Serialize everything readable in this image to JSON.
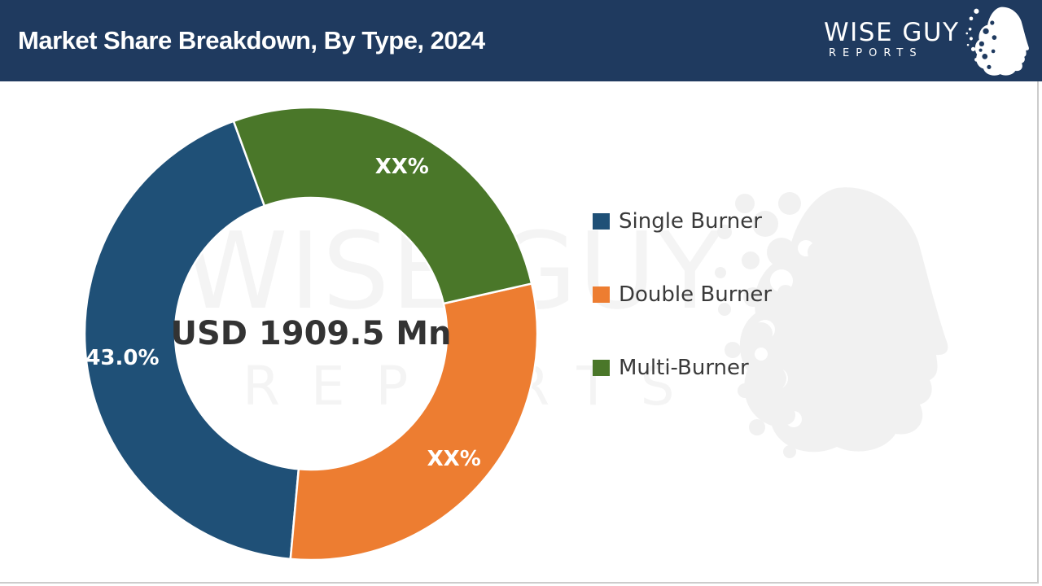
{
  "header": {
    "title": "Market Share Breakdown, By Type, 2024",
    "logo": {
      "line1": "WISE GUY",
      "line2": "REPORTS"
    }
  },
  "watermark": {
    "line1": "WISE GUY",
    "line2": "REPORTS"
  },
  "chart_data": {
    "type": "pie",
    "subtype": "donut",
    "title": "Market Share Breakdown, By Type, 2024",
    "center_label": "USD 1909.5 Mn",
    "categories": [
      "Single Burner",
      "Double Burner",
      "Multi-Burner"
    ],
    "values": [
      43,
      30,
      27
    ],
    "slice_labels": [
      "43.0%",
      "XX%",
      "XX%"
    ],
    "colors": [
      "#1f5077",
      "#ed7d31",
      "#4a7729"
    ],
    "start_angle_deg": 110,
    "direction": "counterclockwise",
    "inner_radius_ratio": 0.6,
    "legend_position": "right"
  }
}
